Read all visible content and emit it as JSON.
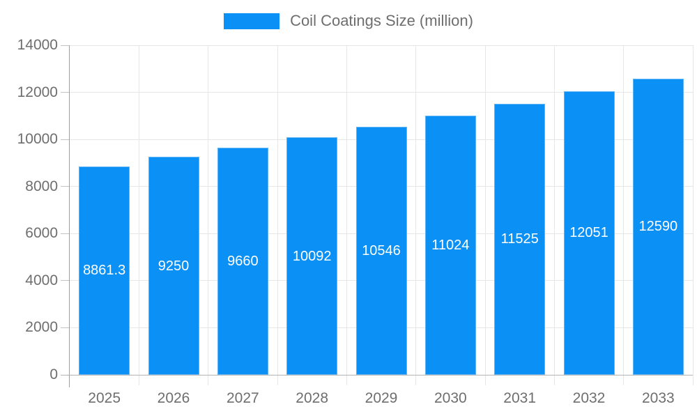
{
  "legend": {
    "items": [
      {
        "label": "Coil Coatings Size (million)",
        "color": "#0b90f5"
      }
    ]
  },
  "chart_data": {
    "type": "bar",
    "title": "Coil Coatings Size (million)",
    "categories": [
      "2025",
      "2026",
      "2027",
      "2028",
      "2029",
      "2030",
      "2031",
      "2032",
      "2033"
    ],
    "series": [
      {
        "name": "Coil Coatings Size (million)",
        "color": "#0b90f5",
        "values": [
          8861.3,
          9250,
          9660,
          10092,
          10546,
          11024,
          11525,
          12051,
          12590
        ],
        "data_labels": [
          "8861.3",
          "9250",
          "9660",
          "10092",
          "10546",
          "11024",
          "11525",
          "12051",
          "12590"
        ]
      }
    ],
    "xlabel": "",
    "ylabel": "",
    "ylim": [
      0,
      14000
    ],
    "yticks": [
      0,
      2000,
      4000,
      6000,
      8000,
      10000,
      12000,
      14000
    ],
    "grid": true,
    "legend_position": "top",
    "data_label_position": "inside-center",
    "data_label_color": "#ffffff"
  },
  "colors": {
    "bar": "#0b90f5",
    "grid": "#e6e6e6",
    "axis_line": "#9e9e9e",
    "baseline": "#b3b3b3",
    "tick": "#c2c2c2",
    "axis_text": "#6e6e6e",
    "data_label": "#ffffff",
    "background": "#ffffff"
  }
}
